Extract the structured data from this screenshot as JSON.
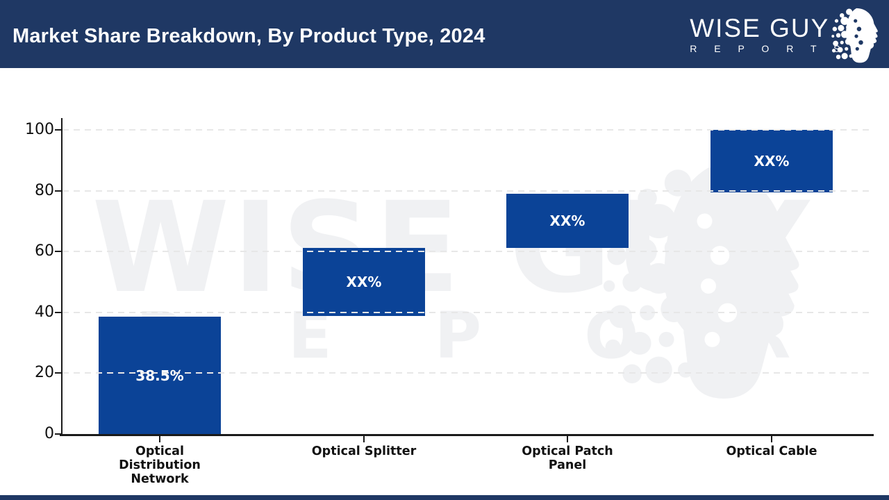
{
  "header": {
    "title": "Market Share Breakdown, By Product Type, 2024",
    "logo_line1": "WISE GUY",
    "logo_line2": "R E P O R T S"
  },
  "watermark": {
    "line1": "WISE GUY",
    "line2": "REPORTS"
  },
  "chart_data": {
    "type": "bar",
    "subtype": "waterfall",
    "title": "Market Share Breakdown, By Product Type, 2024",
    "categories": [
      {
        "label": "Optical Distribution Network",
        "lines": [
          "Optical",
          "Distribution",
          "Network"
        ]
      },
      {
        "label": "Optical Splitter",
        "lines": [
          "Optical Splitter"
        ]
      },
      {
        "label": "Optical Patch Panel",
        "lines": [
          "Optical Patch",
          "Panel"
        ]
      },
      {
        "label": "Optical Cable",
        "lines": [
          "Optical Cable"
        ]
      }
    ],
    "segments": [
      {
        "category": "Optical Distribution Network",
        "start": 0,
        "end": 38.5,
        "label": "38.5%"
      },
      {
        "category": "Optical Splitter",
        "start": 38.8,
        "end": 61.2,
        "label": "XX%"
      },
      {
        "category": "Optical Patch Panel",
        "start": 61.2,
        "end": 79.1,
        "label": "XX%"
      },
      {
        "category": "Optical Cable",
        "start": 79.5,
        "end": 100,
        "label": "XX%"
      }
    ],
    "xlabel": "",
    "ylabel": "",
    "ylim": [
      0,
      100
    ],
    "yticks": [
      0,
      20,
      40,
      60,
      80,
      100
    ],
    "grid": {
      "horizontal": true,
      "style": "dashed",
      "drawn_over_bars": true
    },
    "legend": "none",
    "colors": {
      "bar": "#0b4397",
      "bar_label": "#ffffff",
      "axis": "#1a1a1a",
      "gridline": "#e7e7e7",
      "tick_label": "#111111",
      "header_bg": "#1f3864",
      "watermark": "#f0f1f3"
    }
  }
}
